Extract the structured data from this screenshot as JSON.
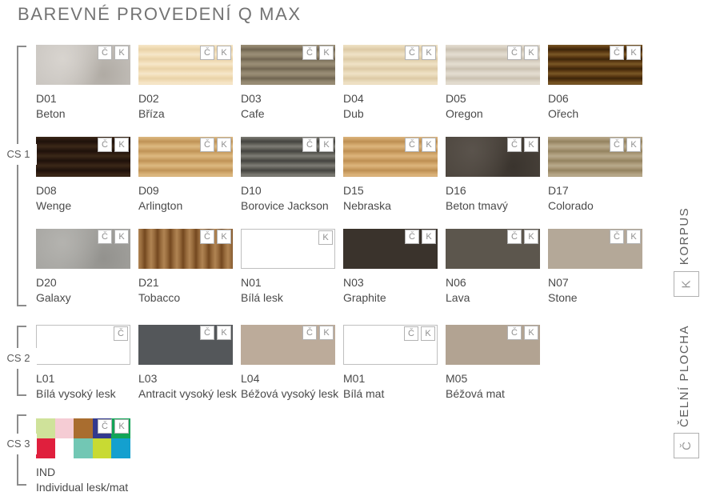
{
  "title": "BAREVNÉ PROVEDENÍ Q MAX",
  "side": {
    "korpus_label": "KORPUS",
    "korpus_badge": "K",
    "celni_label": "ČELNÍ PLOCHA",
    "celni_badge": "Č"
  },
  "badge_style": {
    "border": "#b3b3b3",
    "text": "#8f8f8f",
    "background": "#ffffff"
  },
  "groups": [
    {
      "label": "CS 1",
      "rows": [
        [
          {
            "code": "D01",
            "name": "Beton",
            "badges": [
              "Č",
              "K"
            ],
            "texture": "concrete",
            "colors": {
              "base": "#c8c4bf",
              "light": "#d8d4cf",
              "dark": "#b0aba4"
            }
          },
          {
            "code": "D02",
            "name": "Bříza",
            "badges": [
              "Č",
              "K"
            ],
            "texture": "wood-h",
            "colors": {
              "base": "#f1ddb7",
              "light": "#f6e7ca",
              "dark": "#e9d2a8"
            }
          },
          {
            "code": "D03",
            "name": "Cafe",
            "badges": [
              "Č",
              "K"
            ],
            "texture": "wood-h",
            "colors": {
              "base": "#8b7f68",
              "light": "#9b8f77",
              "dark": "#6f6450"
            }
          },
          {
            "code": "D04",
            "name": "Dub",
            "badges": [
              "Č",
              "K"
            ],
            "texture": "wood-h",
            "colors": {
              "base": "#e7d7b6",
              "light": "#efe2c6",
              "dark": "#dcc9a5"
            }
          },
          {
            "code": "D05",
            "name": "Oregon",
            "badges": [
              "Č",
              "K"
            ],
            "texture": "wood-h",
            "colors": {
              "base": "#d9d1c3",
              "light": "#e4ddd1",
              "dark": "#c9c0b0"
            }
          },
          {
            "code": "D06",
            "name": "Ořech",
            "badges": [
              "Č",
              "K"
            ],
            "texture": "wood-h",
            "colors": {
              "base": "#5d3b14",
              "light": "#7a5826",
              "dark": "#3d2409"
            }
          }
        ],
        [
          {
            "code": "D08",
            "name": "Wenge",
            "badges": [
              "Č",
              "K"
            ],
            "texture": "wood-h",
            "colors": {
              "base": "#2d1c11",
              "light": "#3b2818",
              "dark": "#1e110a"
            }
          },
          {
            "code": "D09",
            "name": "Arlington",
            "badges": [
              "Č",
              "K"
            ],
            "texture": "wood-h",
            "colors": {
              "base": "#d0a76c",
              "light": "#dcb981",
              "dark": "#bf9356"
            }
          },
          {
            "code": "D10",
            "name": "Borovice Jackson",
            "badges": [
              "Č",
              "K"
            ],
            "texture": "wood-h",
            "colors": {
              "base": "#616059",
              "light": "#7e7d76",
              "dark": "#444340"
            }
          },
          {
            "code": "D15",
            "name": "Nebraska",
            "badges": [
              "Č",
              "K"
            ],
            "texture": "wood-h",
            "colors": {
              "base": "#cfa368",
              "light": "#dcb57d",
              "dark": "#bd8f52"
            }
          },
          {
            "code": "D16",
            "name": "Beton tmavý",
            "badges": [
              "Č",
              "K"
            ],
            "texture": "concrete",
            "colors": {
              "base": "#4c453d",
              "light": "#5a534c",
              "dark": "#3a342e"
            }
          },
          {
            "code": "D17",
            "name": "Colorado",
            "badges": [
              "Č",
              "K"
            ],
            "texture": "wood-h",
            "colors": {
              "base": "#a99877",
              "light": "#b9aa8c",
              "dark": "#93825f"
            }
          }
        ],
        [
          {
            "code": "D20",
            "name": "Galaxy",
            "badges": [
              "Č",
              "K"
            ],
            "texture": "concrete",
            "colors": {
              "base": "#a5a4a0",
              "light": "#b4b3af",
              "dark": "#93928e"
            }
          },
          {
            "code": "D21",
            "name": "Tobacco",
            "badges": [
              "Č",
              "K"
            ],
            "texture": "wood-v",
            "colors": {
              "base": "#976a3c",
              "light": "#b08453",
              "dark": "#73481f"
            }
          },
          {
            "code": "N01",
            "name": "Bílá lesk",
            "badges": [
              "K"
            ],
            "texture": "border",
            "colors": {
              "base": "#ffffff",
              "border": "#bfbfbf"
            }
          },
          {
            "code": "N03",
            "name": "Graphite",
            "badges": [
              "Č",
              "K"
            ],
            "texture": "plain",
            "colors": {
              "base": "#3a332c"
            }
          },
          {
            "code": "N06",
            "name": "Lava",
            "badges": [
              "Č",
              "K"
            ],
            "texture": "plain",
            "colors": {
              "base": "#5c564d"
            }
          },
          {
            "code": "N07",
            "name": "Stone",
            "badges": [
              "Č",
              "K"
            ],
            "texture": "plain",
            "colors": {
              "base": "#b4a898"
            }
          }
        ]
      ]
    },
    {
      "label": "CS 2",
      "rows": [
        [
          {
            "code": "L01",
            "name": "Bílá vysoký lesk",
            "badges": [
              "Č"
            ],
            "texture": "border",
            "colors": {
              "base": "#ffffff",
              "border": "#bfbfbf"
            }
          },
          {
            "code": "L03",
            "name": "Antracit vysoký lesk",
            "badges": [
              "Č",
              "K"
            ],
            "texture": "plain",
            "colors": {
              "base": "#54575a"
            }
          },
          {
            "code": "L04",
            "name": "Béžová vysoký lesk",
            "badges": [
              "Č",
              "K"
            ],
            "texture": "plain",
            "colors": {
              "base": "#bcab9a"
            }
          },
          {
            "code": "M01",
            "name": "Bílá mat",
            "badges": [
              "Č",
              "K"
            ],
            "texture": "border",
            "colors": {
              "base": "#ffffff",
              "border": "#bfbfbf"
            }
          },
          {
            "code": "M05",
            "name": "Béžová mat",
            "badges": [
              "Č",
              "K"
            ],
            "texture": "plain",
            "colors": {
              "base": "#b2a392"
            }
          }
        ]
      ]
    },
    {
      "label": "CS 3",
      "rows": [
        [
          {
            "code": "IND",
            "name": "Individual lesk/mat",
            "badges": [
              "Č",
              "K"
            ],
            "texture": "grid",
            "grid_colors": [
              "#cfe29a",
              "#f5ccd4",
              "#a96d2f",
              "#333a8e",
              "#12a457",
              "#e01f3d",
              "#ffffff",
              "#72c7b4",
              "#c8da33",
              "#14a0cf"
            ]
          }
        ]
      ]
    }
  ]
}
